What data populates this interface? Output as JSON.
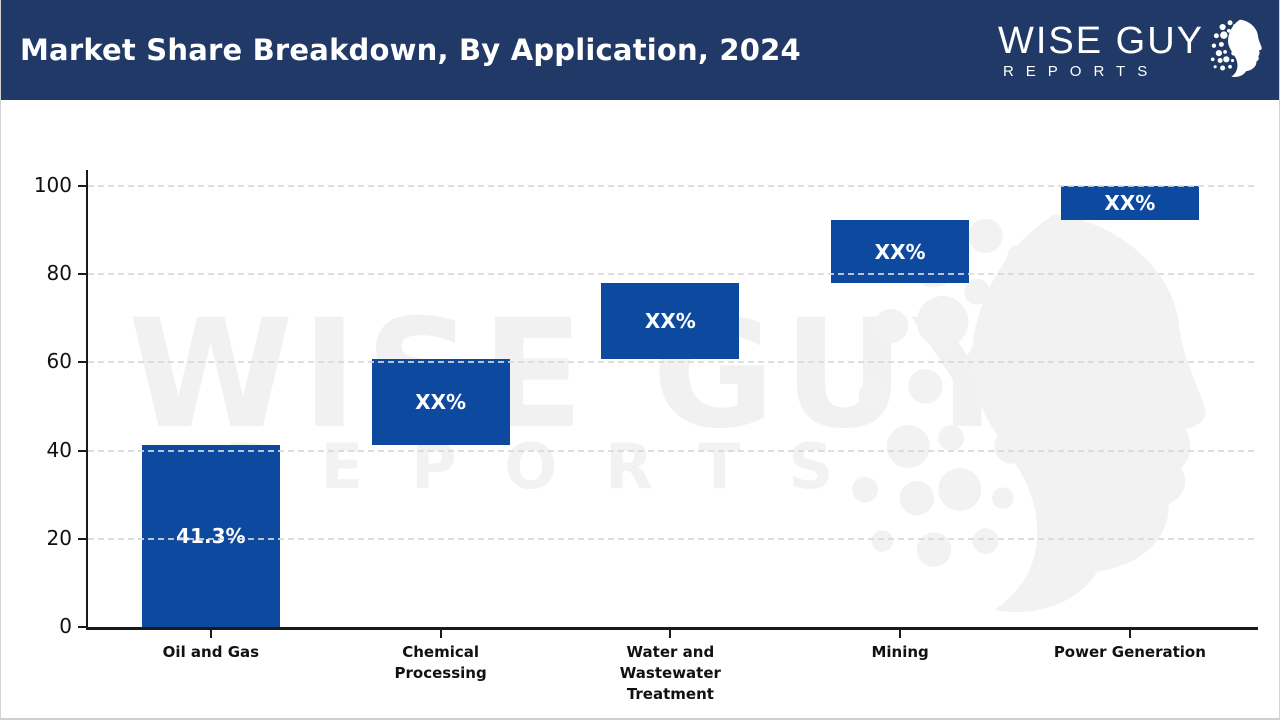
{
  "header": {
    "title": "Market Share Breakdown, By Application, 2024",
    "logo": {
      "wordmark": "WISE GUY",
      "subtext": "REPORTS"
    }
  },
  "watermark": {
    "line1": "WISE GUY",
    "line2": "REPORTS"
  },
  "colors": {
    "header_bg": "#203966",
    "bar": "#0d4a9f",
    "grid": "#d8d8d8",
    "axis": "#1a1a1a",
    "bar_label": "#ffffff",
    "watermark": "#f1f1f1"
  },
  "chart_data": {
    "type": "bar",
    "variant": "waterfall",
    "title": "Market Share Breakdown, By Application, 2024",
    "xlabel": "",
    "ylabel": "",
    "ylim": [
      0,
      103.5
    ],
    "yticks": [
      0,
      20,
      40,
      60,
      80,
      100
    ],
    "grid": "horizontal-dashed",
    "legend": "none",
    "categories": [
      "Oil and Gas",
      "Chemical Processing",
      "Water and Wastewater Treatment",
      "Mining",
      "Power Generation"
    ],
    "category_lines": [
      [
        "Oil and Gas"
      ],
      [
        "Chemical",
        "Processing"
      ],
      [
        "Water and",
        "Wastewater",
        "Treatment"
      ],
      [
        "Mining"
      ],
      [
        "Power Generation"
      ]
    ],
    "segments": [
      {
        "category": "Oil and Gas",
        "start": 0,
        "end": 41.3,
        "label": "41.3%"
      },
      {
        "category": "Chemical Processing",
        "start": 41.3,
        "end": 60.8,
        "label": "XX%"
      },
      {
        "category": "Water and Wastewater Treatment",
        "start": 60.8,
        "end": 78.0,
        "label": "XX%"
      },
      {
        "category": "Mining",
        "start": 78.0,
        "end": 92.2,
        "label": "XX%"
      },
      {
        "category": "Power Generation",
        "start": 92.2,
        "end": 100.0,
        "label": "XX%"
      }
    ]
  }
}
